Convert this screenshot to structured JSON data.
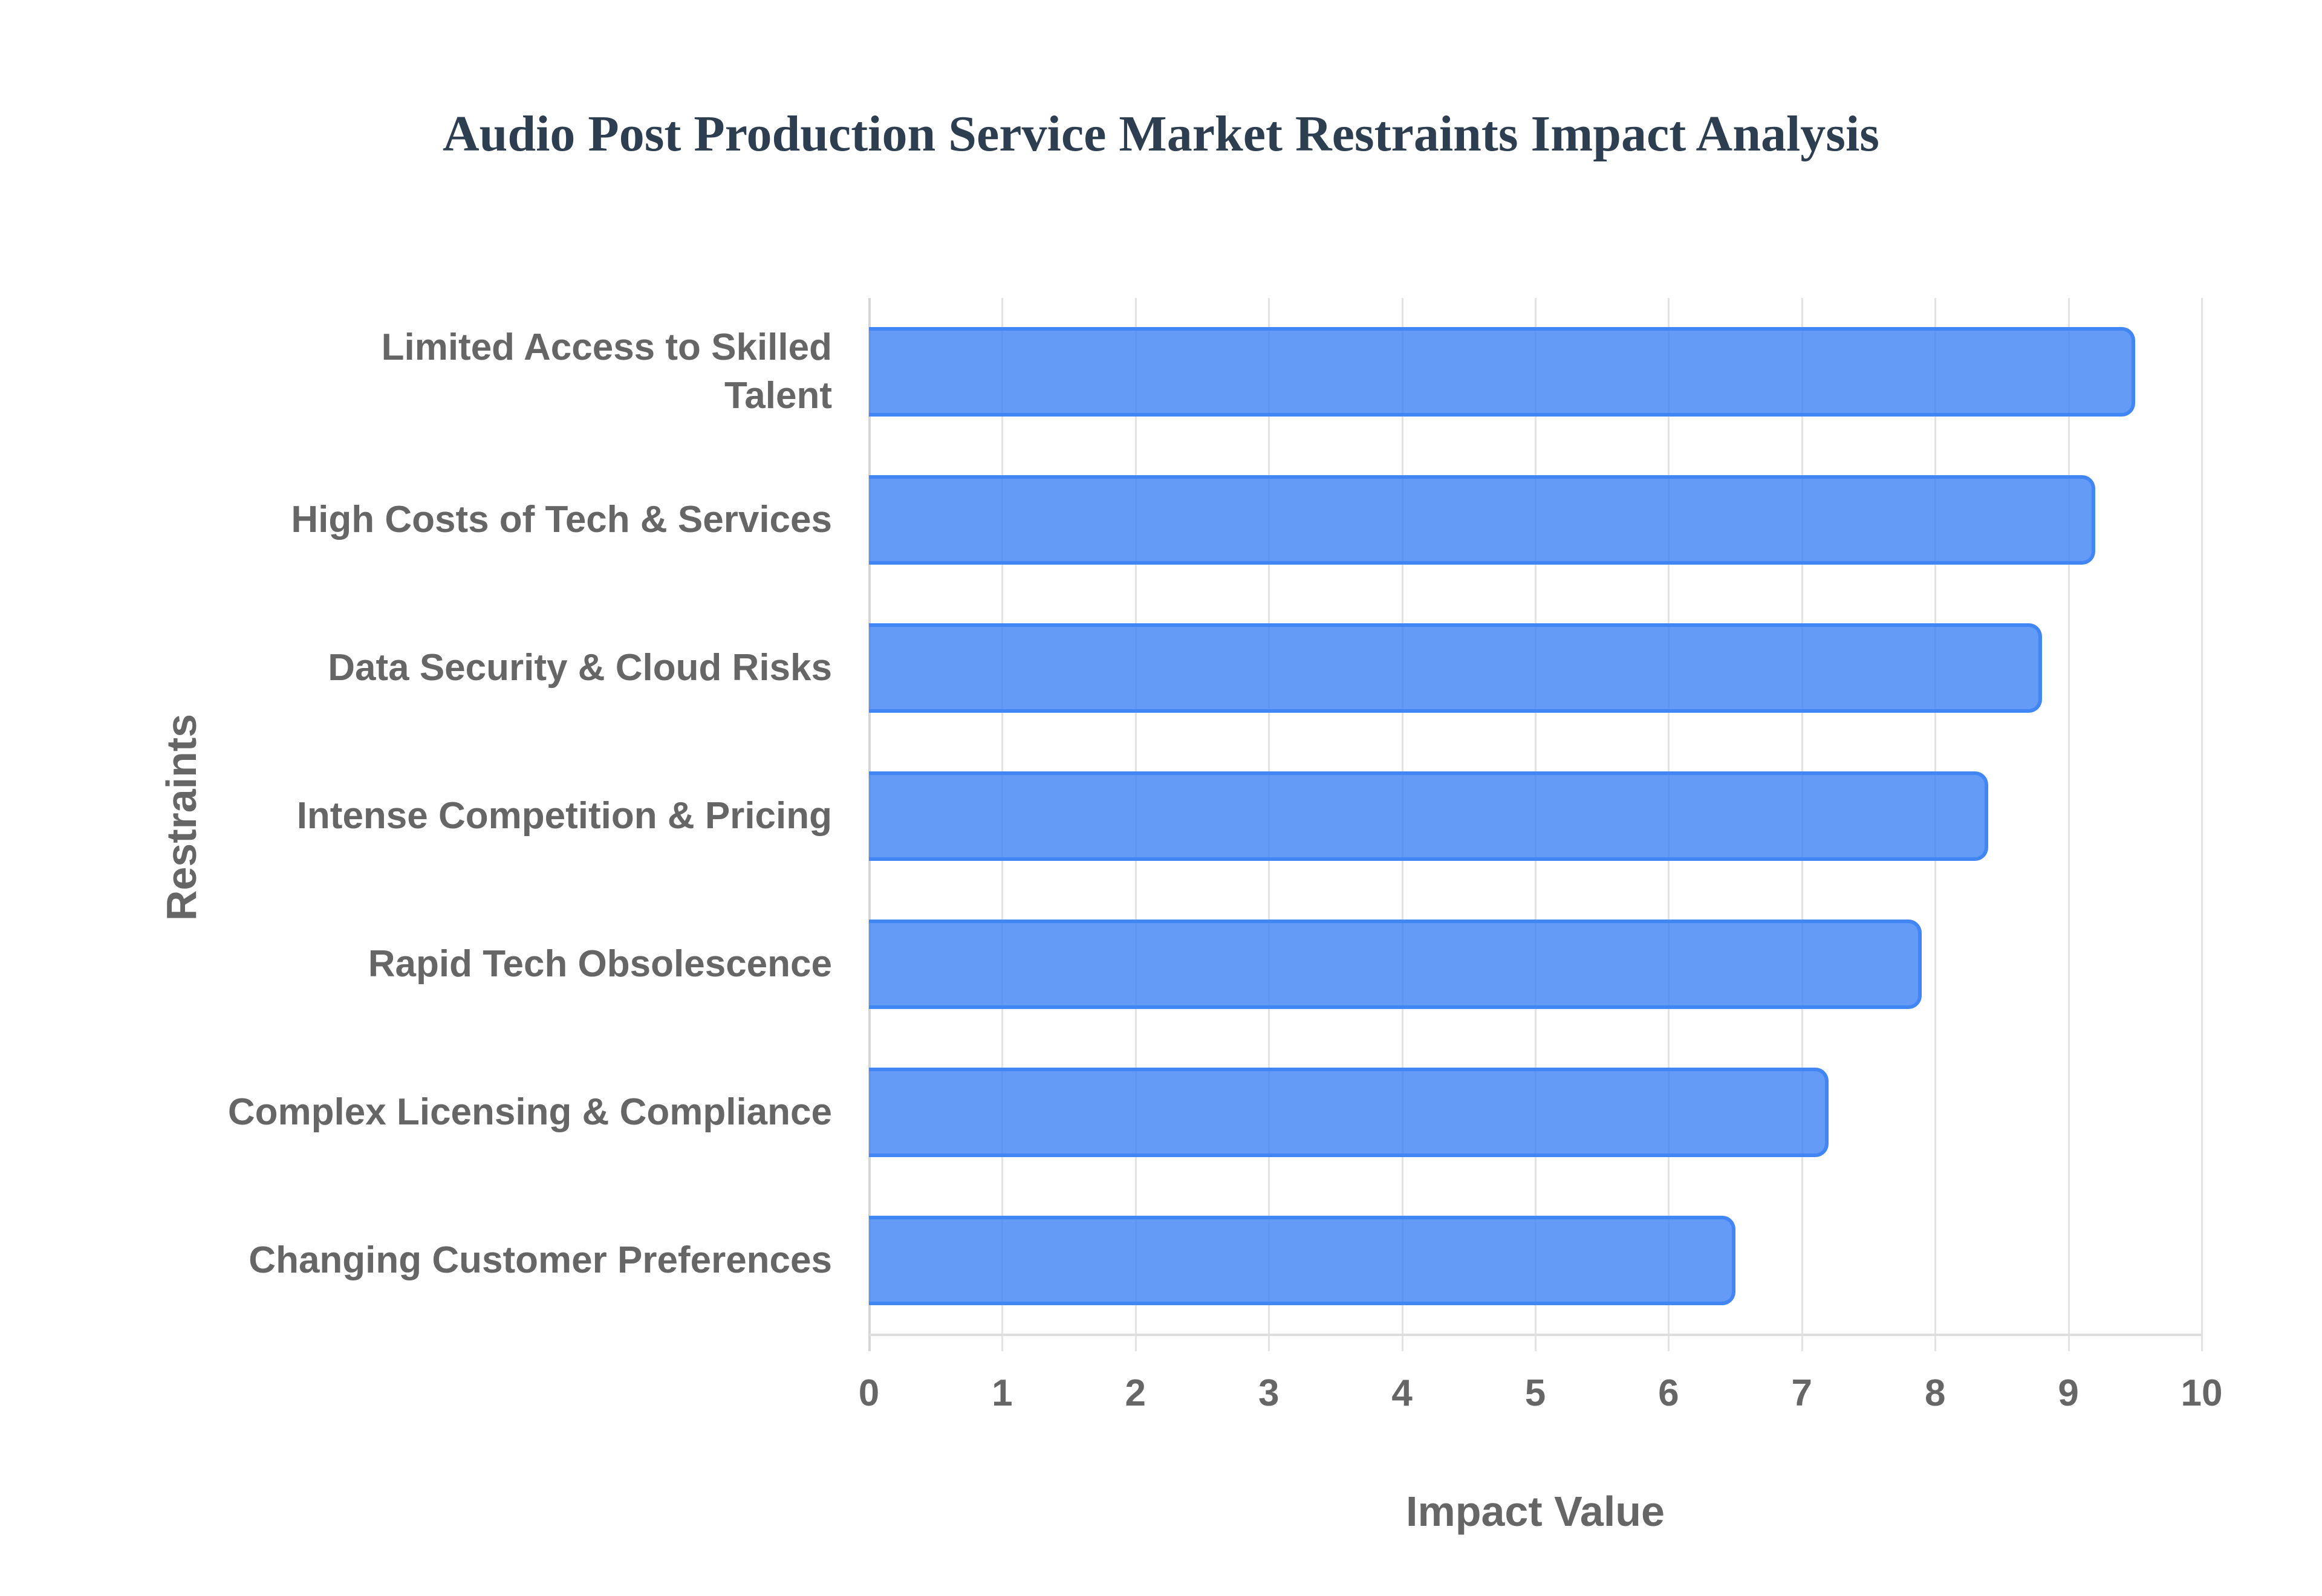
{
  "chart_data": {
    "type": "bar",
    "orientation": "horizontal",
    "title": "Audio Post Production Service Market Restraints Impact Analysis",
    "xlabel": "Impact Value",
    "ylabel": "Restraints",
    "categories": [
      "Limited Access to Skilled Talent",
      "High Costs of Tech & Services",
      "Data Security & Cloud Risks",
      "Intense Competition & Pricing",
      "Rapid Tech Obsolescence",
      "Complex Licensing & Compliance",
      "Changing Customer Preferences"
    ],
    "category_display_labels": [
      "Limited Access to Skilled\nTalent",
      "High Costs of Tech & Services",
      "Data Security & Cloud Risks",
      "Intense Competition & Pricing",
      "Rapid Tech Obsolescence",
      "Complex Licensing & Compliance",
      "Changing Customer Preferences"
    ],
    "values": [
      9.5,
      9.2,
      8.8,
      8.4,
      7.9,
      7.2,
      6.5
    ],
    "xlim": [
      0,
      10
    ],
    "x_ticks": [
      "0",
      "1",
      "2",
      "3",
      "4",
      "5",
      "6",
      "7",
      "8",
      "9",
      "10"
    ],
    "grid": {
      "vertical": true,
      "horizontal": false
    },
    "legend": null,
    "colors": {
      "bar_fill": "#6199f5",
      "bar_border": "#4285f4",
      "title": "#2c3e50",
      "axis_text": "#666666",
      "grid": "#e3e3e3"
    }
  }
}
